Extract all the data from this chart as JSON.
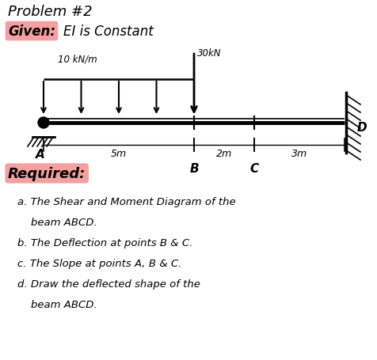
{
  "title": "Problem #2",
  "given_label": "Given:",
  "given_text": "EI is Constant",
  "bg_color": "#ffffff",
  "highlight_color": "#f4a0a0",
  "dist_load_label": "10 kN/m",
  "point_load_value": "30kN",
  "span_AB": "5m",
  "span_BC": "2m",
  "span_CD": "3m",
  "required_label": "Required:",
  "req_a": "a. The Shear and Moment Diagram of the",
  "req_a2": "    beam ABCD.",
  "req_b": "b. The Deflection at points B & C.",
  "req_c": "c. The Slope at points A, B & C.",
  "req_d": "d. Draw the deflected shape of the",
  "req_d2": "    beam ABCD.",
  "label_A": "A",
  "label_B": "B",
  "label_C": "C",
  "label_D": "D"
}
